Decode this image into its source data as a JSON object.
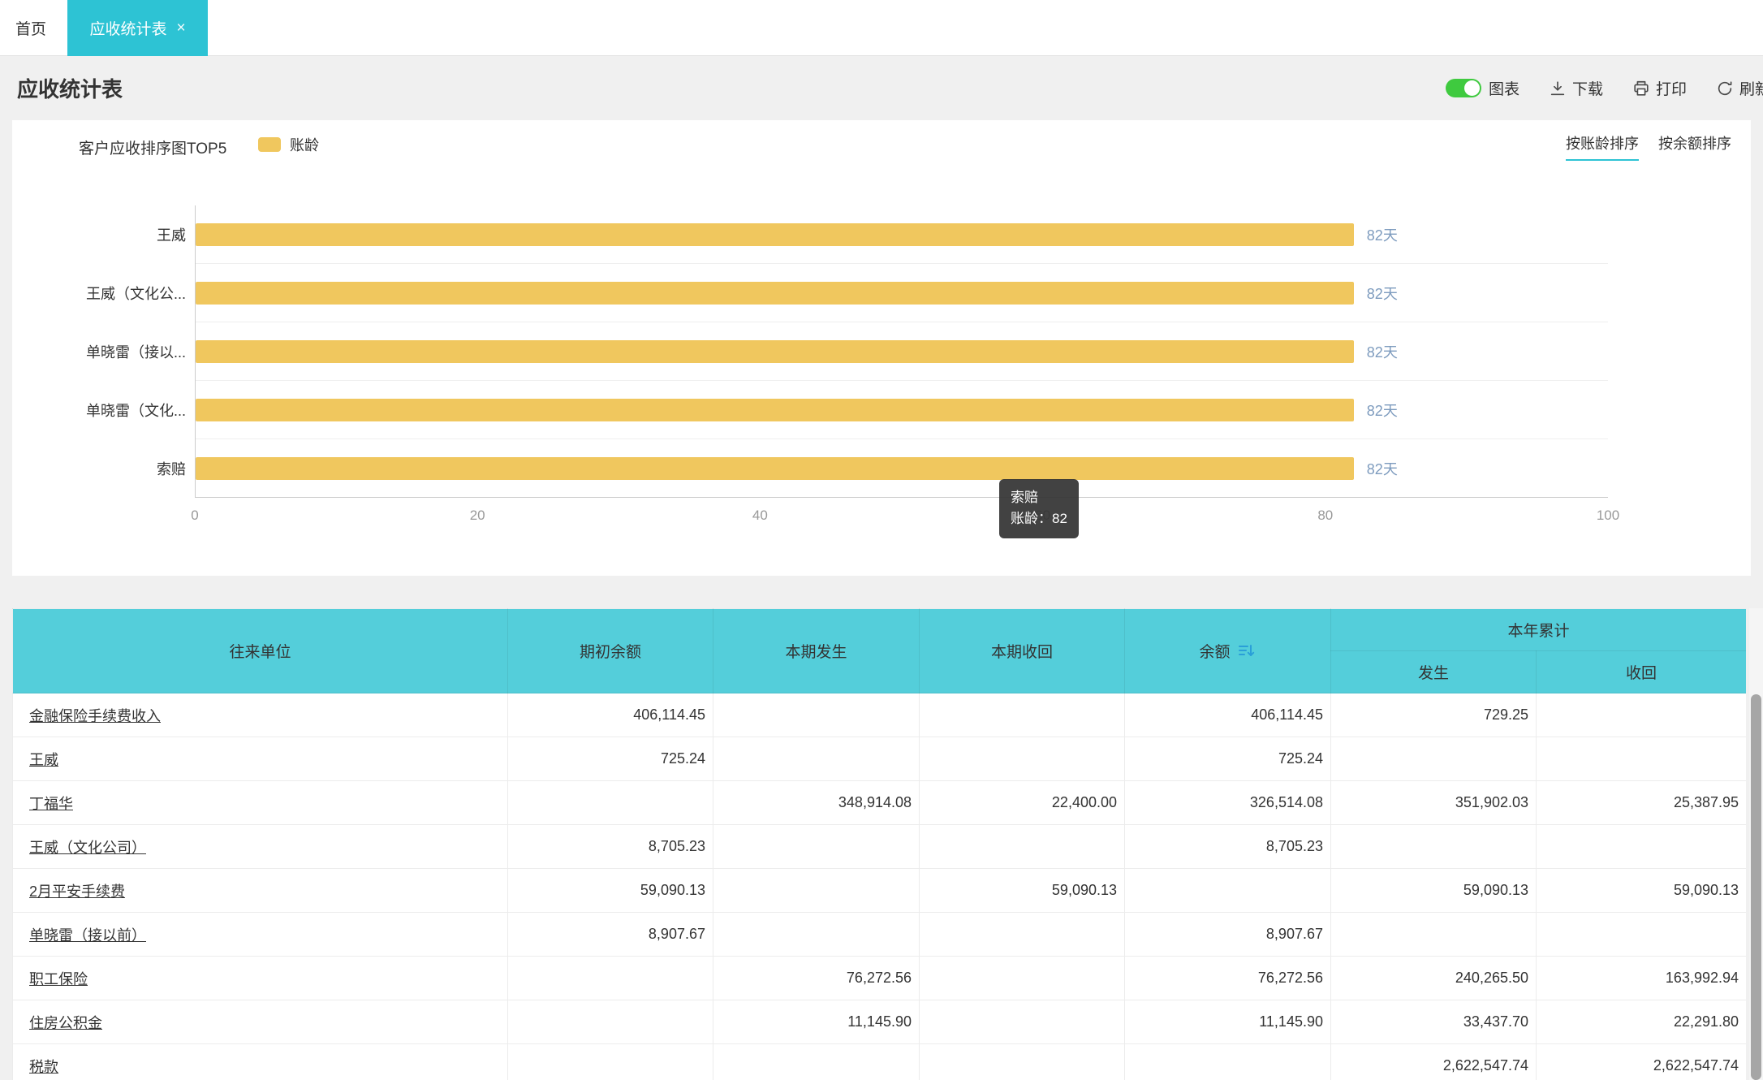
{
  "tab_bar": {
    "home_tab": "首页",
    "active_tab": "应收统计表",
    "close": "×"
  },
  "toolbar": {
    "title": "应收统计表",
    "chart_toggle_label": "图表",
    "download_label": "下载",
    "print_label": "打印",
    "refresh_label": "刷新"
  },
  "chart": {
    "title": "客户应收排序图TOP5",
    "legend_label": "账龄",
    "sort_tabs": {
      "by_age": "按账龄排序",
      "by_balance": "按余额排序",
      "active": "by_age"
    },
    "tooltip": {
      "title": "索赔",
      "line": "账龄：82"
    }
  },
  "chart_data": {
    "type": "bar",
    "orientation": "horizontal",
    "title": "客户应收排序图TOP5",
    "series_name": "账龄",
    "categories": [
      "王威",
      "王威（文化公...",
      "单晓雷（接以...",
      "单晓雷（文化...",
      "索赔"
    ],
    "values": [
      82,
      82,
      82,
      82,
      82
    ],
    "value_labels": [
      "82天",
      "82天",
      "82天",
      "82天",
      "82天"
    ],
    "xlim": [
      0,
      100
    ],
    "x_ticks": [
      "0",
      "20",
      "40",
      "60",
      "80",
      "100"
    ],
    "bar_color": "#F0C75E",
    "grid": true,
    "legend_position": "top-left"
  },
  "table": {
    "columns": [
      "往来单位",
      "期初余额",
      "本期发生",
      "本期收回",
      "余额"
    ],
    "year_group": {
      "label": "本年累计",
      "children": [
        "发生",
        "收回"
      ]
    },
    "rows": [
      {
        "name": "金融保险手续费收入",
        "cells": [
          "406,114.45",
          "",
          "",
          "406,114.45",
          "729.25",
          ""
        ]
      },
      {
        "name": "王威",
        "cells": [
          "725.24",
          "",
          "",
          "725.24",
          "",
          ""
        ]
      },
      {
        "name": "丁福华",
        "cells": [
          "",
          "348,914.08",
          "22,400.00",
          "326,514.08",
          "351,902.03",
          "25,387.95"
        ]
      },
      {
        "name": "王威（文化公司）",
        "cells": [
          "8,705.23",
          "",
          "",
          "8,705.23",
          "",
          ""
        ]
      },
      {
        "name": "2月平安手续费",
        "cells": [
          "59,090.13",
          "",
          "59,090.13",
          "",
          "59,090.13",
          "59,090.13"
        ]
      },
      {
        "name": "单晓雷（接以前）",
        "cells": [
          "8,907.67",
          "",
          "",
          "8,907.67",
          "",
          ""
        ]
      },
      {
        "name": "职工保险",
        "cells": [
          "",
          "76,272.56",
          "",
          "76,272.56",
          "240,265.50",
          "163,992.94"
        ]
      },
      {
        "name": "住房公积金",
        "cells": [
          "",
          "11,145.90",
          "",
          "11,145.90",
          "33,437.70",
          "22,291.80"
        ]
      },
      {
        "name": "税款",
        "cells": [
          "",
          "",
          "",
          "",
          "2,622,547.74",
          "2,622,547.74"
        ]
      }
    ]
  },
  "colors": {
    "accent_cyan": "#2DC3D4",
    "table_header_cyan": "#54CEDA",
    "bar_yellow": "#F0C75E",
    "toggle_green": "#3FCA3F",
    "sort_icon_blue": "#2A9FD8",
    "value_label_blue": "#7D9BBE",
    "page_background": "#F0F0F0"
  }
}
